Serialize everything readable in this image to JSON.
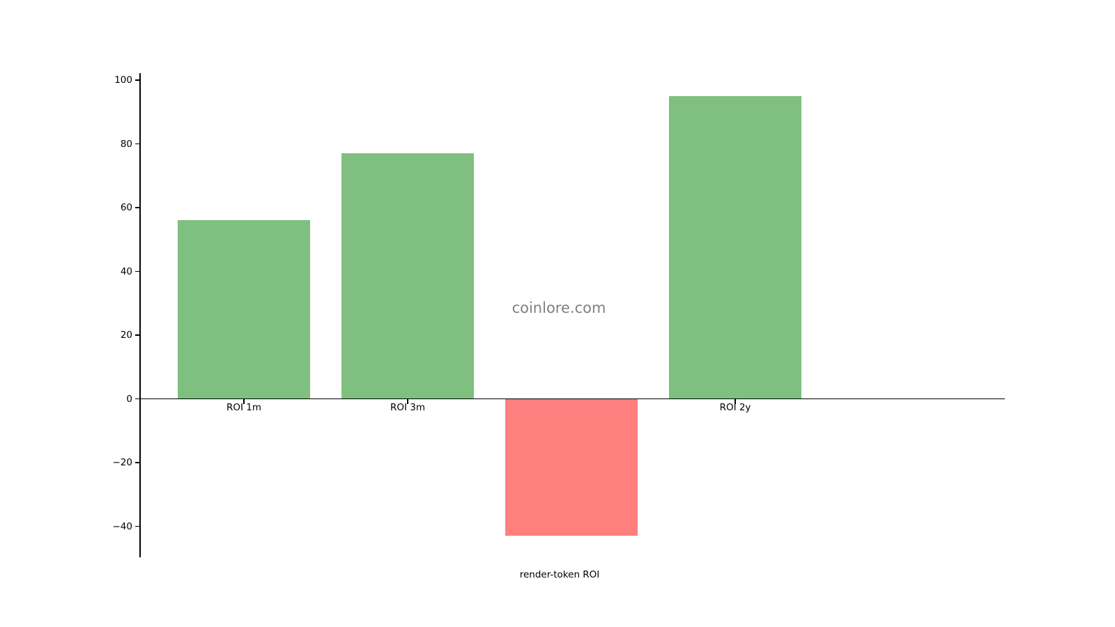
{
  "chart_data": {
    "type": "bar",
    "title": "",
    "xlabel": "render-token ROI",
    "ylabel": "",
    "categories": [
      "ROI 1m",
      "ROI 3m",
      "",
      "ROI 2y"
    ],
    "values": [
      56,
      77,
      -43,
      95
    ],
    "ylim": [
      -49.7,
      102.2
    ],
    "yticks": [
      100,
      80,
      60,
      40,
      20,
      0,
      -20,
      -40
    ],
    "ytick_labels": [
      "100",
      "80",
      "60",
      "40",
      "20",
      "0",
      "−20",
      "−40"
    ],
    "grid": false,
    "legend": false,
    "colors": {
      "positive_bar": "#7fbf7f",
      "negative_bar": "#ff7f7f",
      "axis": "#000000",
      "tick_text": "#000000",
      "watermark_text": "#808080"
    },
    "watermark": "coinlore.com"
  }
}
